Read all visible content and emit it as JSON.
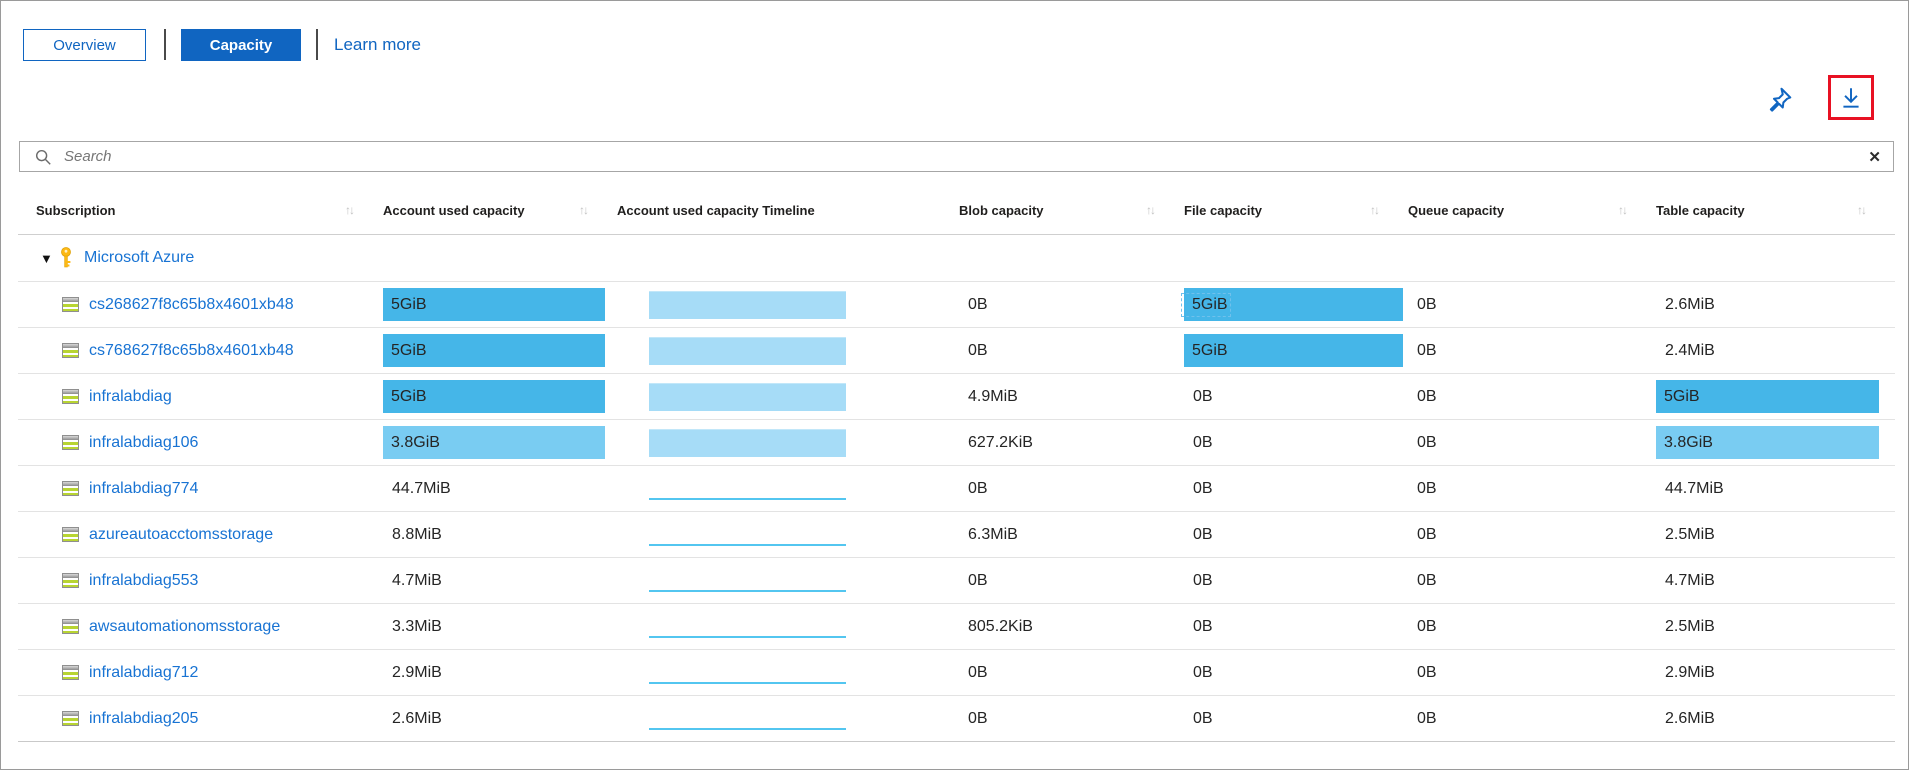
{
  "toolbar": {
    "overview_label": "Overview",
    "capacity_label": "Capacity",
    "learn_more_label": "Learn more"
  },
  "actions": {
    "pin_icon": "pushpin",
    "download_icon": "download-arrow",
    "download_highlighted": true
  },
  "search": {
    "placeholder": "Search",
    "clear_icon": "✕"
  },
  "colors": {
    "accent": "#1065c1",
    "row_link": "#1873d3",
    "bar_medium": "#45b6e8",
    "bar_light": "#79ccf2",
    "timeline_fill": "#a6dcf7",
    "sparkline": "#53c6f0",
    "highlight_red": "#e81123",
    "key_icon_gold": "#fdb913",
    "storage_icon_green": "#b8d432"
  },
  "table": {
    "columns": [
      {
        "label": "Subscription",
        "sortable": true
      },
      {
        "label": "Account used capacity",
        "sortable": true
      },
      {
        "label": "Account used capacity Timeline",
        "sortable": false
      },
      {
        "label": "Blob capacity",
        "sortable": true
      },
      {
        "label": "File capacity",
        "sortable": true
      },
      {
        "label": "Queue capacity",
        "sortable": true
      },
      {
        "label": "Table capacity",
        "sortable": true
      }
    ],
    "sort_icon": "↑↓",
    "group": {
      "label": "Microsoft Azure",
      "expanded": true,
      "caret_icon": "▼",
      "key_icon": "key"
    },
    "rows": [
      {
        "name": "cs268627f8c65b8x4601xb48",
        "account": {
          "value": "5GiB",
          "bar": "medium"
        },
        "timeline": "bar",
        "blob": "0B",
        "file": {
          "value": "5GiB",
          "bar": "medium",
          "focus": true
        },
        "queue": "0B",
        "tbl": {
          "value": "2.6MiB",
          "bar": null
        }
      },
      {
        "name": "cs768627f8c65b8x4601xb48",
        "account": {
          "value": "5GiB",
          "bar": "medium"
        },
        "timeline": "bar",
        "blob": "0B",
        "file": {
          "value": "5GiB",
          "bar": "medium"
        },
        "queue": "0B",
        "tbl": {
          "value": "2.4MiB",
          "bar": null
        }
      },
      {
        "name": "infralabdiag",
        "account": {
          "value": "5GiB",
          "bar": "medium"
        },
        "timeline": "bar",
        "blob": "4.9MiB",
        "file": {
          "value": "0B",
          "bar": null
        },
        "queue": "0B",
        "tbl": {
          "value": "5GiB",
          "bar": "medium"
        }
      },
      {
        "name": "infralabdiag106",
        "account": {
          "value": "3.8GiB",
          "bar": "light"
        },
        "timeline": "bar",
        "blob": "627.2KiB",
        "file": {
          "value": "0B",
          "bar": null
        },
        "queue": "0B",
        "tbl": {
          "value": "3.8GiB",
          "bar": "light"
        }
      },
      {
        "name": "infralabdiag774",
        "account": {
          "value": "44.7MiB",
          "bar": null
        },
        "timeline": "line",
        "blob": "0B",
        "file": {
          "value": "0B",
          "bar": null
        },
        "queue": "0B",
        "tbl": {
          "value": "44.7MiB",
          "bar": null
        }
      },
      {
        "name": "azureautoacctomsstorage",
        "account": {
          "value": "8.8MiB",
          "bar": null
        },
        "timeline": "line",
        "blob": "6.3MiB",
        "file": {
          "value": "0B",
          "bar": null
        },
        "queue": "0B",
        "tbl": {
          "value": "2.5MiB",
          "bar": null
        }
      },
      {
        "name": "infralabdiag553",
        "account": {
          "value": "4.7MiB",
          "bar": null
        },
        "timeline": "line",
        "blob": "0B",
        "file": {
          "value": "0B",
          "bar": null
        },
        "queue": "0B",
        "tbl": {
          "value": "4.7MiB",
          "bar": null
        }
      },
      {
        "name": "awsautomationomsstorage",
        "account": {
          "value": "3.3MiB",
          "bar": null
        },
        "timeline": "line",
        "blob": "805.2KiB",
        "file": {
          "value": "0B",
          "bar": null
        },
        "queue": "0B",
        "tbl": {
          "value": "2.5MiB",
          "bar": null
        }
      },
      {
        "name": "infralabdiag712",
        "account": {
          "value": "2.9MiB",
          "bar": null
        },
        "timeline": "line",
        "blob": "0B",
        "file": {
          "value": "0B",
          "bar": null
        },
        "queue": "0B",
        "tbl": {
          "value": "2.9MiB",
          "bar": null
        }
      },
      {
        "name": "infralabdiag205",
        "account": {
          "value": "2.6MiB",
          "bar": null
        },
        "timeline": "line",
        "blob": "0B",
        "file": {
          "value": "0B",
          "bar": null
        },
        "queue": "0B",
        "tbl": {
          "value": "2.6MiB",
          "bar": null
        }
      }
    ]
  }
}
